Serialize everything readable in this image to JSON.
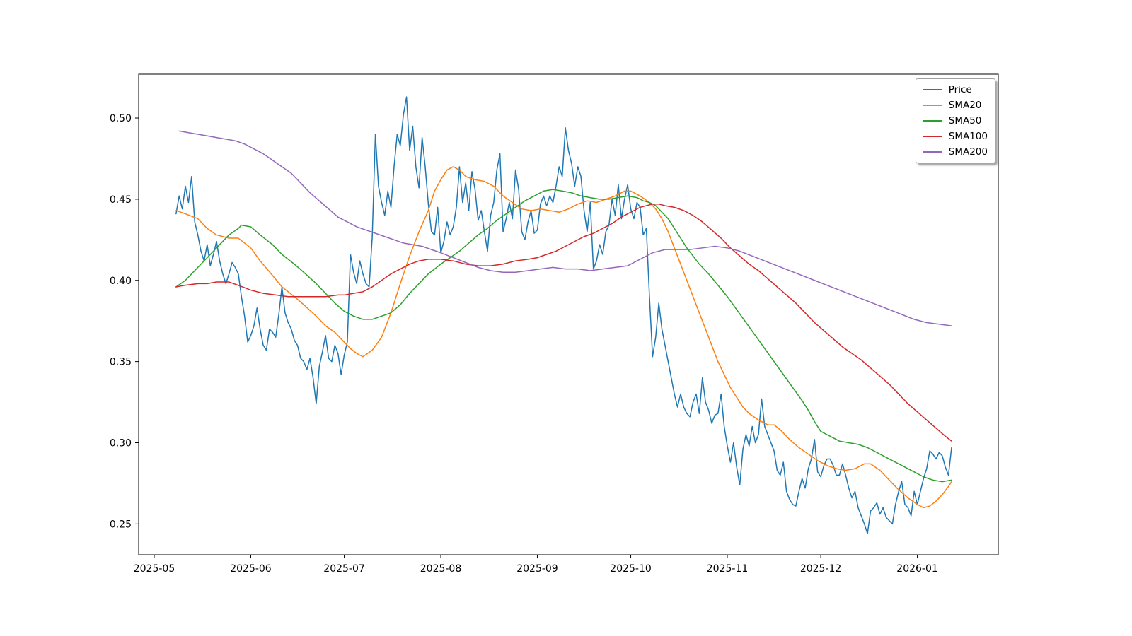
{
  "figure": {
    "background": "#ffffff"
  },
  "chart_data": {
    "type": "line",
    "title": "",
    "xlabel": "",
    "ylabel": "",
    "grid": false,
    "legend_position": "upper right",
    "x_unit": "days since 2025-05-01",
    "xlim": [
      -5,
      271
    ],
    "ylim": [
      0.231,
      0.527
    ],
    "x_ticks": [
      {
        "pos": 0,
        "label": "2025-05"
      },
      {
        "pos": 31,
        "label": "2025-06"
      },
      {
        "pos": 61,
        "label": "2025-07"
      },
      {
        "pos": 92,
        "label": "2025-08"
      },
      {
        "pos": 123,
        "label": "2025-09"
      },
      {
        "pos": 153,
        "label": "2025-10"
      },
      {
        "pos": 184,
        "label": "2025-11"
      },
      {
        "pos": 214,
        "label": "2025-12"
      },
      {
        "pos": 245,
        "label": "2026-01"
      }
    ],
    "y_ticks": [
      {
        "pos": 0.25,
        "label": "0.25"
      },
      {
        "pos": 0.3,
        "label": "0.30"
      },
      {
        "pos": 0.35,
        "label": "0.35"
      },
      {
        "pos": 0.4,
        "label": "0.40"
      },
      {
        "pos": 0.45,
        "label": "0.45"
      },
      {
        "pos": 0.5,
        "label": "0.50"
      }
    ],
    "series": [
      {
        "name": "Price",
        "color": "#1f77b4",
        "x_start": 7,
        "x_step": 1,
        "y": [
          0.441,
          0.452,
          0.444,
          0.458,
          0.448,
          0.464,
          0.436,
          0.428,
          0.418,
          0.412,
          0.422,
          0.409,
          0.416,
          0.424,
          0.412,
          0.404,
          0.398,
          0.404,
          0.411,
          0.408,
          0.404,
          0.39,
          0.378,
          0.362,
          0.366,
          0.372,
          0.383,
          0.37,
          0.36,
          0.357,
          0.37,
          0.368,
          0.365,
          0.379,
          0.396,
          0.38,
          0.374,
          0.37,
          0.363,
          0.36,
          0.352,
          0.35,
          0.345,
          0.352,
          0.34,
          0.324,
          0.347,
          0.356,
          0.366,
          0.352,
          0.35,
          0.36,
          0.355,
          0.342,
          0.354,
          0.362,
          0.416,
          0.405,
          0.398,
          0.412,
          0.404,
          0.398,
          0.396,
          0.427,
          0.49,
          0.458,
          0.448,
          0.44,
          0.455,
          0.445,
          0.47,
          0.49,
          0.483,
          0.502,
          0.513,
          0.48,
          0.495,
          0.47,
          0.457,
          0.488,
          0.47,
          0.447,
          0.43,
          0.428,
          0.445,
          0.417,
          0.424,
          0.436,
          0.428,
          0.433,
          0.445,
          0.47,
          0.448,
          0.46,
          0.443,
          0.467,
          0.456,
          0.437,
          0.443,
          0.43,
          0.418,
          0.44,
          0.448,
          0.468,
          0.478,
          0.43,
          0.438,
          0.448,
          0.438,
          0.468,
          0.456,
          0.43,
          0.425,
          0.436,
          0.443,
          0.429,
          0.431,
          0.447,
          0.452,
          0.446,
          0.452,
          0.448,
          0.458,
          0.47,
          0.464,
          0.494,
          0.48,
          0.472,
          0.458,
          0.47,
          0.464,
          0.443,
          0.43,
          0.448,
          0.407,
          0.412,
          0.422,
          0.416,
          0.43,
          0.434,
          0.45,
          0.44,
          0.459,
          0.438,
          0.45,
          0.459,
          0.444,
          0.438,
          0.448,
          0.445,
          0.428,
          0.432,
          0.39,
          0.353,
          0.365,
          0.386,
          0.37,
          0.36,
          0.35,
          0.34,
          0.33,
          0.322,
          0.33,
          0.322,
          0.318,
          0.316,
          0.325,
          0.33,
          0.318,
          0.34,
          0.325,
          0.32,
          0.312,
          0.317,
          0.318,
          0.33,
          0.31,
          0.298,
          0.288,
          0.3,
          0.285,
          0.274,
          0.296,
          0.305,
          0.298,
          0.31,
          0.3,
          0.305,
          0.327,
          0.31,
          0.305,
          0.3,
          0.295,
          0.283,
          0.28,
          0.288,
          0.27,
          0.265,
          0.262,
          0.261,
          0.27,
          0.278,
          0.272,
          0.284,
          0.29,
          0.302,
          0.282,
          0.279,
          0.286,
          0.29,
          0.29,
          0.286,
          0.28,
          0.28,
          0.287,
          0.28,
          0.272,
          0.266,
          0.27,
          0.26,
          0.255,
          0.25,
          0.244,
          0.258,
          0.26,
          0.263,
          0.256,
          0.26,
          0.254,
          0.252,
          0.25,
          0.262,
          0.27,
          0.276,
          0.262,
          0.26,
          0.255,
          0.27,
          0.262,
          0.27,
          0.278,
          0.284,
          0.295,
          0.293,
          0.29,
          0.294,
          0.292,
          0.285,
          0.28,
          0.297
        ]
      },
      {
        "name": "SMA20",
        "color": "#ff7f0e",
        "x": [
          7,
          10,
          14,
          17,
          20,
          24,
          27,
          31,
          34,
          38,
          41,
          45,
          48,
          52,
          55,
          58,
          61,
          63,
          65,
          67,
          70,
          73,
          76,
          79,
          82,
          85,
          88,
          90,
          92,
          94,
          96,
          98,
          100,
          103,
          106,
          109,
          112,
          115,
          118,
          121,
          124,
          127,
          130,
          133,
          136,
          139,
          142,
          145,
          148,
          151,
          153,
          156,
          159,
          161,
          163,
          165,
          167,
          169,
          171,
          173,
          175,
          177,
          179,
          181,
          183,
          185,
          187,
          189,
          191,
          194,
          197,
          199,
          201,
          204,
          207,
          210,
          213,
          216,
          219,
          222,
          225,
          228,
          230,
          233,
          236,
          239,
          242,
          245,
          247,
          249,
          251,
          253,
          255,
          256
        ],
        "y": [
          0.443,
          0.441,
          0.438,
          0.432,
          0.428,
          0.426,
          0.426,
          0.42,
          0.412,
          0.403,
          0.396,
          0.39,
          0.385,
          0.378,
          0.372,
          0.368,
          0.362,
          0.358,
          0.355,
          0.353,
          0.357,
          0.365,
          0.38,
          0.398,
          0.415,
          0.43,
          0.443,
          0.455,
          0.462,
          0.468,
          0.47,
          0.468,
          0.464,
          0.462,
          0.461,
          0.458,
          0.452,
          0.448,
          0.444,
          0.443,
          0.444,
          0.443,
          0.442,
          0.444,
          0.447,
          0.449,
          0.448,
          0.45,
          0.452,
          0.455,
          0.455,
          0.452,
          0.448,
          0.444,
          0.438,
          0.43,
          0.42,
          0.41,
          0.4,
          0.39,
          0.38,
          0.37,
          0.36,
          0.35,
          0.342,
          0.334,
          0.328,
          0.322,
          0.318,
          0.314,
          0.311,
          0.311,
          0.308,
          0.302,
          0.297,
          0.293,
          0.289,
          0.286,
          0.284,
          0.283,
          0.284,
          0.287,
          0.287,
          0.283,
          0.277,
          0.271,
          0.266,
          0.262,
          0.26,
          0.261,
          0.264,
          0.268,
          0.273,
          0.276
        ]
      },
      {
        "name": "SMA50",
        "color": "#2ca02c",
        "x": [
          7,
          10,
          14,
          17,
          20,
          24,
          27,
          28,
          31,
          34,
          38,
          41,
          45,
          48,
          52,
          55,
          58,
          61,
          64,
          67,
          70,
          73,
          76,
          79,
          82,
          85,
          88,
          92,
          95,
          98,
          101,
          104,
          107,
          110,
          113,
          116,
          119,
          122,
          125,
          128,
          131,
          134,
          137,
          140,
          143,
          146,
          149,
          152,
          155,
          157,
          159,
          161,
          163,
          165,
          167,
          169,
          171,
          173,
          175,
          178,
          181,
          184,
          187,
          190,
          193,
          196,
          199,
          202,
          205,
          208,
          210,
          212,
          214,
          216,
          218,
          220,
          223,
          226,
          229,
          232,
          235,
          238,
          241,
          244,
          247,
          250,
          253,
          256
        ],
        "y": [
          0.396,
          0.4,
          0.408,
          0.414,
          0.42,
          0.428,
          0.432,
          0.434,
          0.433,
          0.428,
          0.422,
          0.416,
          0.41,
          0.405,
          0.398,
          0.392,
          0.386,
          0.381,
          0.378,
          0.376,
          0.376,
          0.378,
          0.38,
          0.385,
          0.392,
          0.398,
          0.404,
          0.41,
          0.414,
          0.418,
          0.423,
          0.428,
          0.432,
          0.437,
          0.441,
          0.445,
          0.449,
          0.452,
          0.455,
          0.456,
          0.455,
          0.454,
          0.452,
          0.451,
          0.45,
          0.45,
          0.451,
          0.452,
          0.451,
          0.449,
          0.448,
          0.446,
          0.442,
          0.438,
          0.432,
          0.426,
          0.42,
          0.415,
          0.41,
          0.404,
          0.397,
          0.39,
          0.382,
          0.374,
          0.366,
          0.358,
          0.35,
          0.342,
          0.334,
          0.326,
          0.32,
          0.313,
          0.307,
          0.305,
          0.303,
          0.301,
          0.3,
          0.299,
          0.297,
          0.294,
          0.291,
          0.288,
          0.285,
          0.282,
          0.279,
          0.277,
          0.276,
          0.277
        ]
      },
      {
        "name": "SMA100",
        "color": "#d62728",
        "x": [
          7,
          10,
          14,
          17,
          20,
          24,
          27,
          31,
          35,
          39,
          43,
          47,
          51,
          55,
          59,
          61,
          64,
          67,
          70,
          73,
          76,
          79,
          82,
          85,
          88,
          92,
          96,
          100,
          104,
          108,
          112,
          116,
          120,
          123,
          126,
          129,
          132,
          135,
          138,
          141,
          144,
          147,
          150,
          153,
          156,
          158,
          160,
          162,
          164,
          167,
          170,
          173,
          176,
          179,
          182,
          185,
          188,
          191,
          194,
          197,
          200,
          203,
          206,
          209,
          212,
          215,
          218,
          221,
          224,
          227,
          230,
          233,
          236,
          239,
          242,
          245,
          248,
          251,
          254,
          256
        ],
        "y": [
          0.396,
          0.397,
          0.398,
          0.398,
          0.399,
          0.399,
          0.397,
          0.394,
          0.392,
          0.391,
          0.39,
          0.39,
          0.39,
          0.39,
          0.391,
          0.391,
          0.392,
          0.393,
          0.396,
          0.4,
          0.404,
          0.407,
          0.41,
          0.412,
          0.413,
          0.413,
          0.412,
          0.41,
          0.409,
          0.409,
          0.41,
          0.412,
          0.413,
          0.414,
          0.416,
          0.418,
          0.421,
          0.424,
          0.427,
          0.429,
          0.432,
          0.435,
          0.439,
          0.442,
          0.445,
          0.446,
          0.447,
          0.447,
          0.446,
          0.445,
          0.443,
          0.44,
          0.436,
          0.431,
          0.426,
          0.42,
          0.415,
          0.41,
          0.406,
          0.401,
          0.396,
          0.391,
          0.386,
          0.38,
          0.374,
          0.369,
          0.364,
          0.359,
          0.355,
          0.351,
          0.346,
          0.341,
          0.336,
          0.33,
          0.324,
          0.319,
          0.314,
          0.309,
          0.304,
          0.301
        ]
      },
      {
        "name": "SMA200",
        "color": "#9467bd",
        "x": [
          8,
          11,
          14,
          17,
          20,
          23,
          26,
          29,
          32,
          35,
          38,
          41,
          44,
          47,
          50,
          53,
          56,
          59,
          62,
          65,
          68,
          71,
          74,
          77,
          80,
          83,
          86,
          89,
          92,
          96,
          100,
          104,
          108,
          112,
          116,
          120,
          124,
          128,
          132,
          136,
          140,
          144,
          148,
          152,
          156,
          160,
          164,
          168,
          172,
          176,
          180,
          184,
          188,
          192,
          196,
          200,
          204,
          208,
          212,
          216,
          220,
          224,
          228,
          232,
          236,
          240,
          244,
          248,
          252,
          256
        ],
        "y": [
          0.492,
          0.491,
          0.49,
          0.489,
          0.488,
          0.487,
          0.486,
          0.484,
          0.481,
          0.478,
          0.474,
          0.47,
          0.466,
          0.46,
          0.454,
          0.449,
          0.444,
          0.439,
          0.436,
          0.433,
          0.431,
          0.429,
          0.427,
          0.425,
          0.423,
          0.422,
          0.421,
          0.419,
          0.417,
          0.414,
          0.411,
          0.408,
          0.406,
          0.405,
          0.405,
          0.406,
          0.407,
          0.408,
          0.407,
          0.407,
          0.406,
          0.407,
          0.408,
          0.409,
          0.413,
          0.417,
          0.419,
          0.419,
          0.419,
          0.42,
          0.421,
          0.42,
          0.418,
          0.415,
          0.412,
          0.409,
          0.406,
          0.403,
          0.4,
          0.397,
          0.394,
          0.391,
          0.388,
          0.385,
          0.382,
          0.379,
          0.376,
          0.374,
          0.373,
          0.372
        ]
      }
    ]
  }
}
